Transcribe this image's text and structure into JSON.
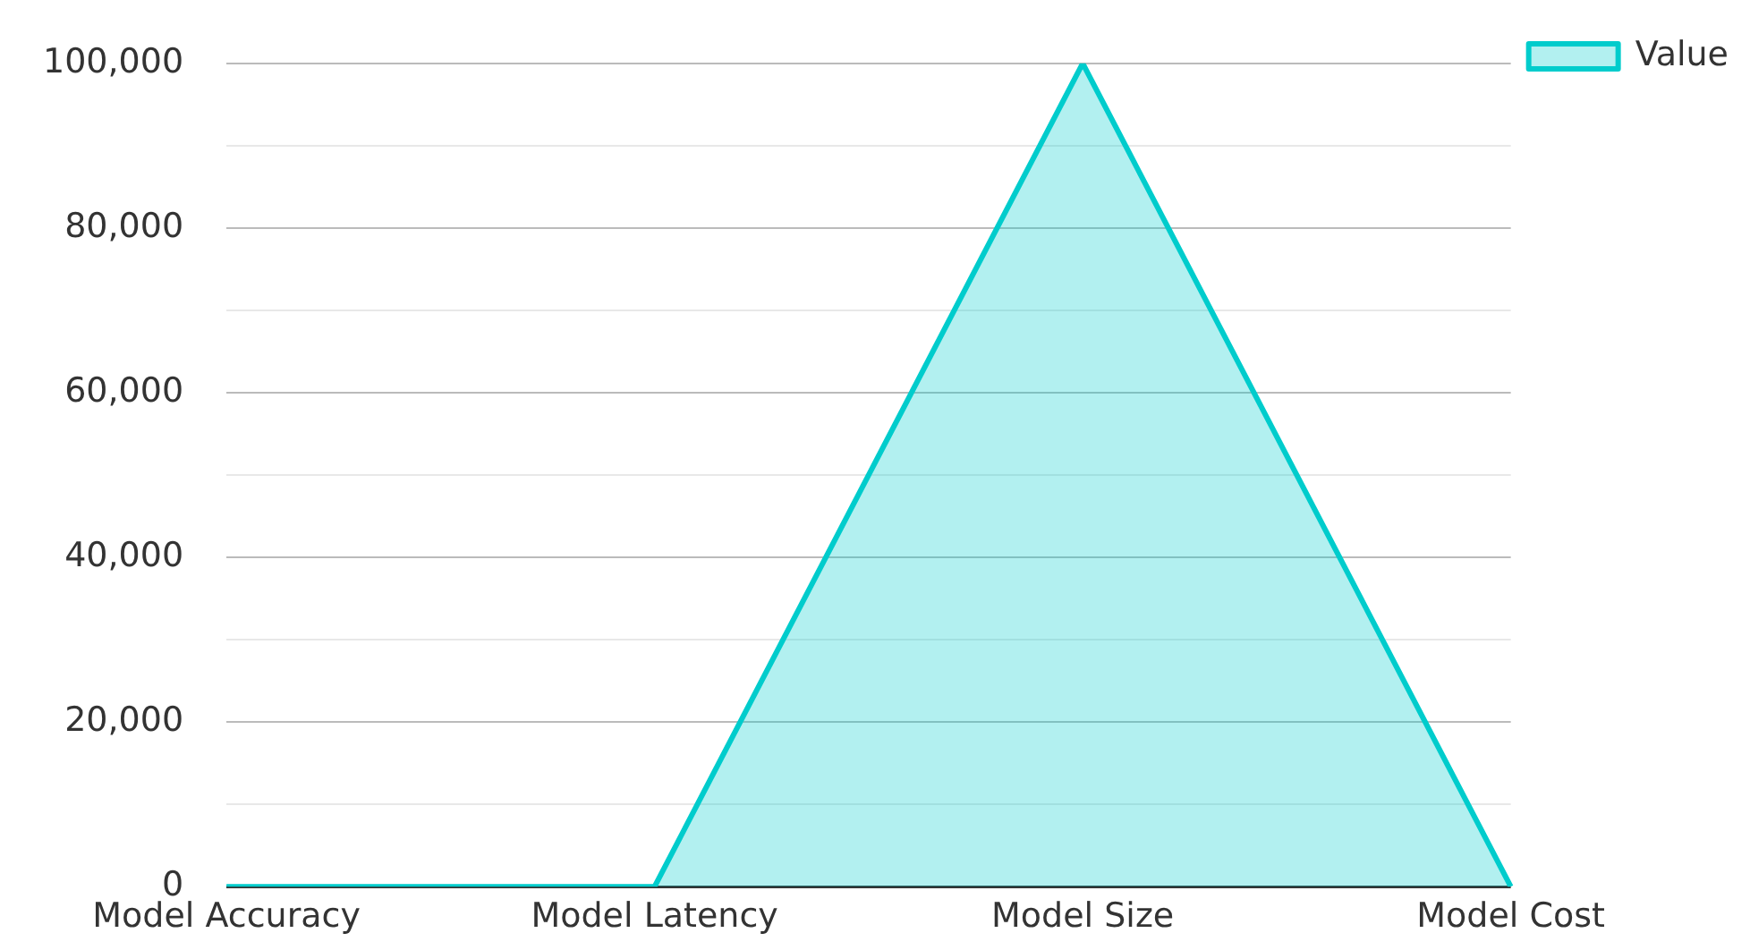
{
  "chart_data": {
    "type": "area",
    "categories": [
      "Model Accuracy",
      "Model Latency",
      "Model Size",
      "Model Cost"
    ],
    "series": [
      {
        "name": "Value",
        "color": "#00cccc",
        "values": [
          0,
          0,
          100000,
          0
        ]
      }
    ],
    "ylim": [
      0,
      100000
    ],
    "yticks": [
      0,
      {
        "value": 10000,
        "label": null
      },
      {
        "value": 20000,
        "label": "20,000"
      },
      {
        "value": 30000,
        "label": null
      },
      {
        "value": 40000,
        "label": "40,000"
      },
      {
        "value": 50000,
        "label": null
      },
      {
        "value": 60000,
        "label": "60,000"
      },
      {
        "value": 70000,
        "label": null
      },
      {
        "value": 80000,
        "label": "80,000"
      },
      {
        "value": 90000,
        "label": null
      },
      {
        "value": 100000,
        "label": "100,000"
      }
    ],
    "grid": "y",
    "legend": "top right",
    "marker": "none",
    "line_style": "solid"
  }
}
